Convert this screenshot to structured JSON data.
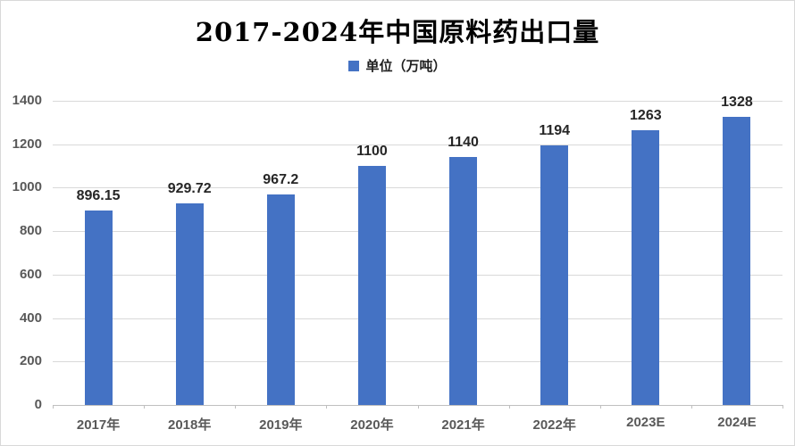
{
  "chart_data": {
    "type": "bar",
    "title": "2017-2024年中国原料药出口量",
    "legend": [
      "单位（万吨）"
    ],
    "legend_position": "top-center",
    "categories": [
      "2017年",
      "2018年",
      "2019年",
      "2020年",
      "2021年",
      "2022年",
      "2023E",
      "2024E"
    ],
    "values": [
      896.15,
      929.72,
      967.2,
      1100,
      1140,
      1194,
      1263,
      1328
    ],
    "value_labels": [
      "896.15",
      "929.72",
      "967.2",
      "1100",
      "1140",
      "1194",
      "1263",
      "1328"
    ],
    "xlabel": "",
    "ylabel": "",
    "ylim": [
      0,
      1400
    ],
    "ytick_step": 200,
    "grid": "horizontal",
    "colors": {
      "bar": "#4472C4",
      "gridline": "#D9D9D9",
      "axis_line": "#BFBFBF",
      "tick_label": "#595959",
      "data_label": "#262626",
      "title": "#000000"
    }
  }
}
